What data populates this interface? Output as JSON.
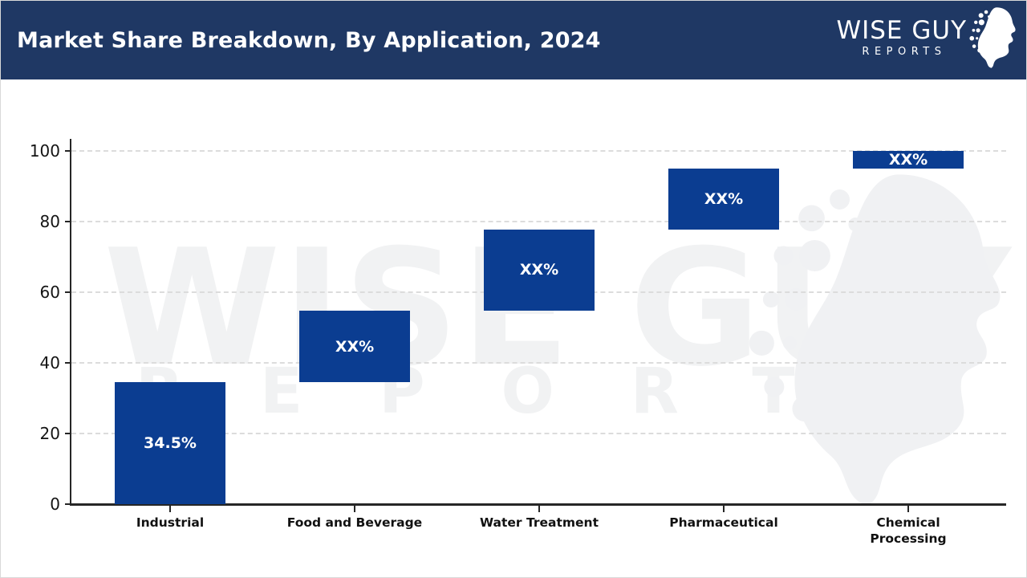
{
  "header": {
    "title": "Market Share Breakdown, By Application, 2024",
    "logo": {
      "line1": "WISE GUY",
      "line2": "REPORTS"
    }
  },
  "watermark": {
    "line1": "WISE GUY",
    "line2": "REPORTS"
  },
  "chart_data": {
    "type": "bar",
    "subtype": "waterfall",
    "title": "Market Share Breakdown, By Application, 2024",
    "categories": [
      "Industrial",
      "Food and Beverage",
      "Water Treatment",
      "Pharmaceutical",
      "Chemical\nProcessing"
    ],
    "segments": [
      {
        "category": "Industrial",
        "start": 0,
        "end": 34.5,
        "label": "34.5%"
      },
      {
        "category": "Food and Beverage",
        "start": 34.5,
        "end": 54.8,
        "label": "XX%"
      },
      {
        "category": "Water Treatment",
        "start": 54.8,
        "end": 77.7,
        "label": "XX%"
      },
      {
        "category": "Pharmaceutical",
        "start": 77.7,
        "end": 95.1,
        "label": "XX%"
      },
      {
        "category": "Chemical Processing",
        "start": 95.1,
        "end": 100,
        "label": "XX%"
      }
    ],
    "yticks": [
      0,
      20,
      40,
      60,
      80,
      100
    ],
    "ylim": [
      0,
      100
    ],
    "xlabel": "",
    "ylabel": "",
    "grid": "horizontal-dashed",
    "legend": "none",
    "bar_color": "#0b3d91",
    "bar_label_color": "#ffffff",
    "header_color": "#1f3864",
    "grid_color": "#dcdcdc",
    "axis_color": "#262626"
  }
}
